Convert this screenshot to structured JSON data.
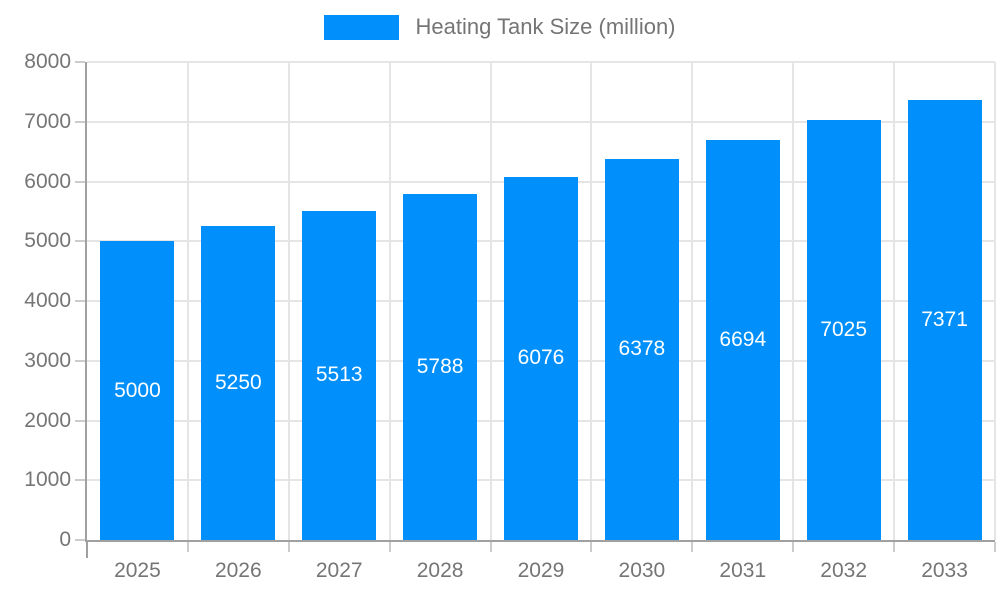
{
  "chart_data": {
    "type": "bar",
    "title": "Heating Tank Size (million)",
    "categories": [
      "2025",
      "2026",
      "2027",
      "2028",
      "2029",
      "2030",
      "2031",
      "2032",
      "2033"
    ],
    "values": [
      5000,
      5250,
      5513,
      5788,
      6076,
      6378,
      6694,
      7025,
      7371
    ],
    "xlabel": "",
    "ylabel": "",
    "ylim": [
      0,
      8000
    ],
    "ytick_step": 1000,
    "grid": true,
    "legend_position": "top",
    "legend_entries": [
      "Heating Tank Size (million)"
    ],
    "data_labels_visible": true,
    "colors": {
      "bar": "#008FFB",
      "data_label": "#ffffff",
      "axis_text": "#757575",
      "legend_text": "#757575",
      "grid": "#e5e5e5",
      "tick": "#cccccc",
      "axis_line": "#a0a0a0",
      "background": "#ffffff"
    }
  }
}
